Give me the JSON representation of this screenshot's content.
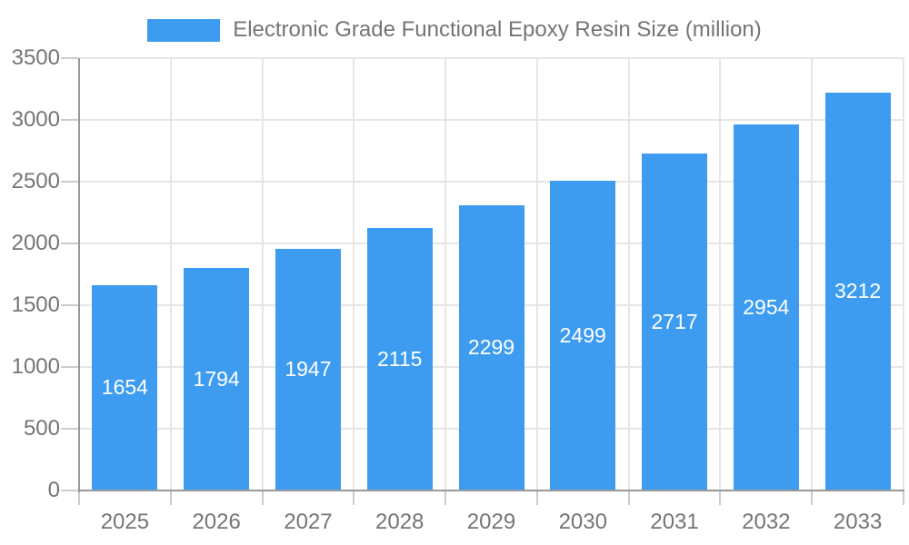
{
  "colors": {
    "background": "#FFFFFF",
    "bar": "#3D9CF0",
    "grid": "#E6E6E6",
    "axis": "#999999",
    "tick": "#CCCCCC",
    "label": "#757575",
    "value_label": "#FFFFFF"
  },
  "legend": {
    "label": "Electronic Grade Functional Epoxy Resin Size (million)"
  },
  "chart_data": {
    "type": "bar",
    "title": "",
    "xlabel": "",
    "ylabel": "",
    "categories": [
      "2025",
      "2026",
      "2027",
      "2028",
      "2029",
      "2030",
      "2031",
      "2032",
      "2033"
    ],
    "values": [
      1654,
      1794,
      1947,
      2115,
      2299,
      2499,
      2717,
      2954,
      3212
    ],
    "series_name": "Electronic Grade Functional Epoxy Resin Size (million)",
    "ylim": [
      0,
      3500
    ],
    "yticks": [
      0,
      500,
      1000,
      1500,
      2000,
      2500,
      3000,
      3500
    ],
    "grid": true,
    "legend_position": "top",
    "value_labels": "inside-center"
  }
}
